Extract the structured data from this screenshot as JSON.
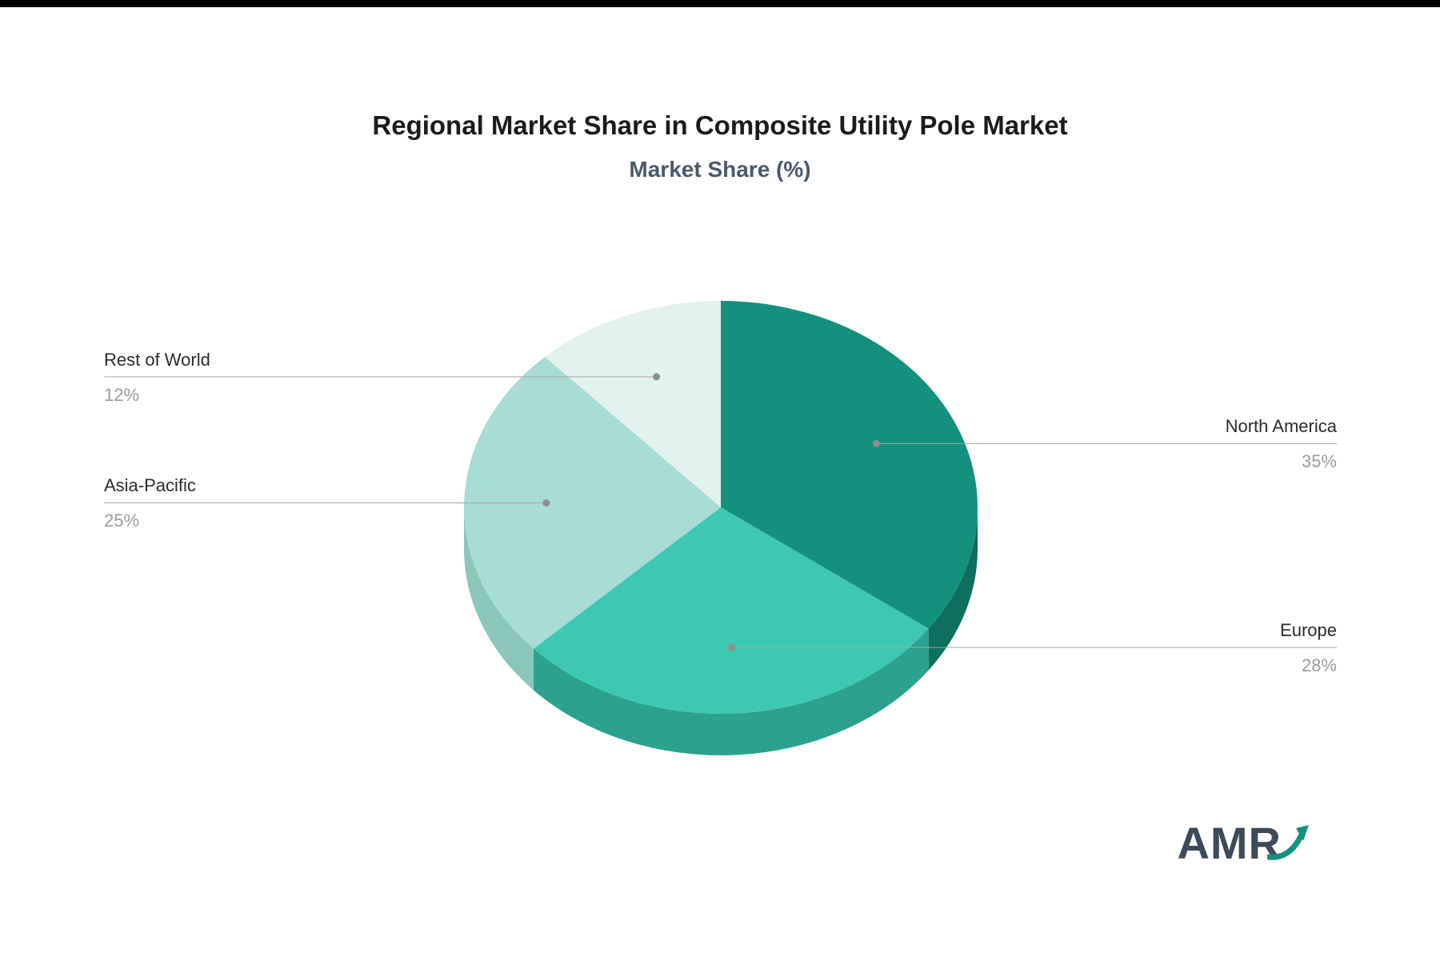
{
  "logo": {
    "text": "AMR"
  },
  "chart_data": {
    "type": "pie",
    "style": "3d-pie",
    "title": "Regional Market Share in Composite Utility Pole Market",
    "subtitle": "Market Share (%)",
    "unit": "%",
    "start_angle_deg": 0,
    "direction": "clockwise",
    "legend_position": "callout-labels",
    "slices": [
      {
        "label": "North America",
        "value": 35,
        "value_label": "35%",
        "color": "#14917e",
        "side_color": "#0e6e60"
      },
      {
        "label": "Europe",
        "value": 28,
        "value_label": "28%",
        "color": "#3cc8b3",
        "side_color": "#2ba18f"
      },
      {
        "label": "Asia-Pacific",
        "value": 25,
        "value_label": "25%",
        "color": "#a7ddd4",
        "side_color": "#8bc6bb"
      },
      {
        "label": "Rest of World",
        "value": 12,
        "value_label": "12%",
        "color": "#e2f2ef",
        "side_color": "#bcd9d3"
      }
    ],
    "label_colors": {
      "name": "#2b2b2b",
      "value": "#9c9c9c"
    },
    "leader_line_color": "#a6a6a6",
    "accent_color": "#14917e"
  }
}
